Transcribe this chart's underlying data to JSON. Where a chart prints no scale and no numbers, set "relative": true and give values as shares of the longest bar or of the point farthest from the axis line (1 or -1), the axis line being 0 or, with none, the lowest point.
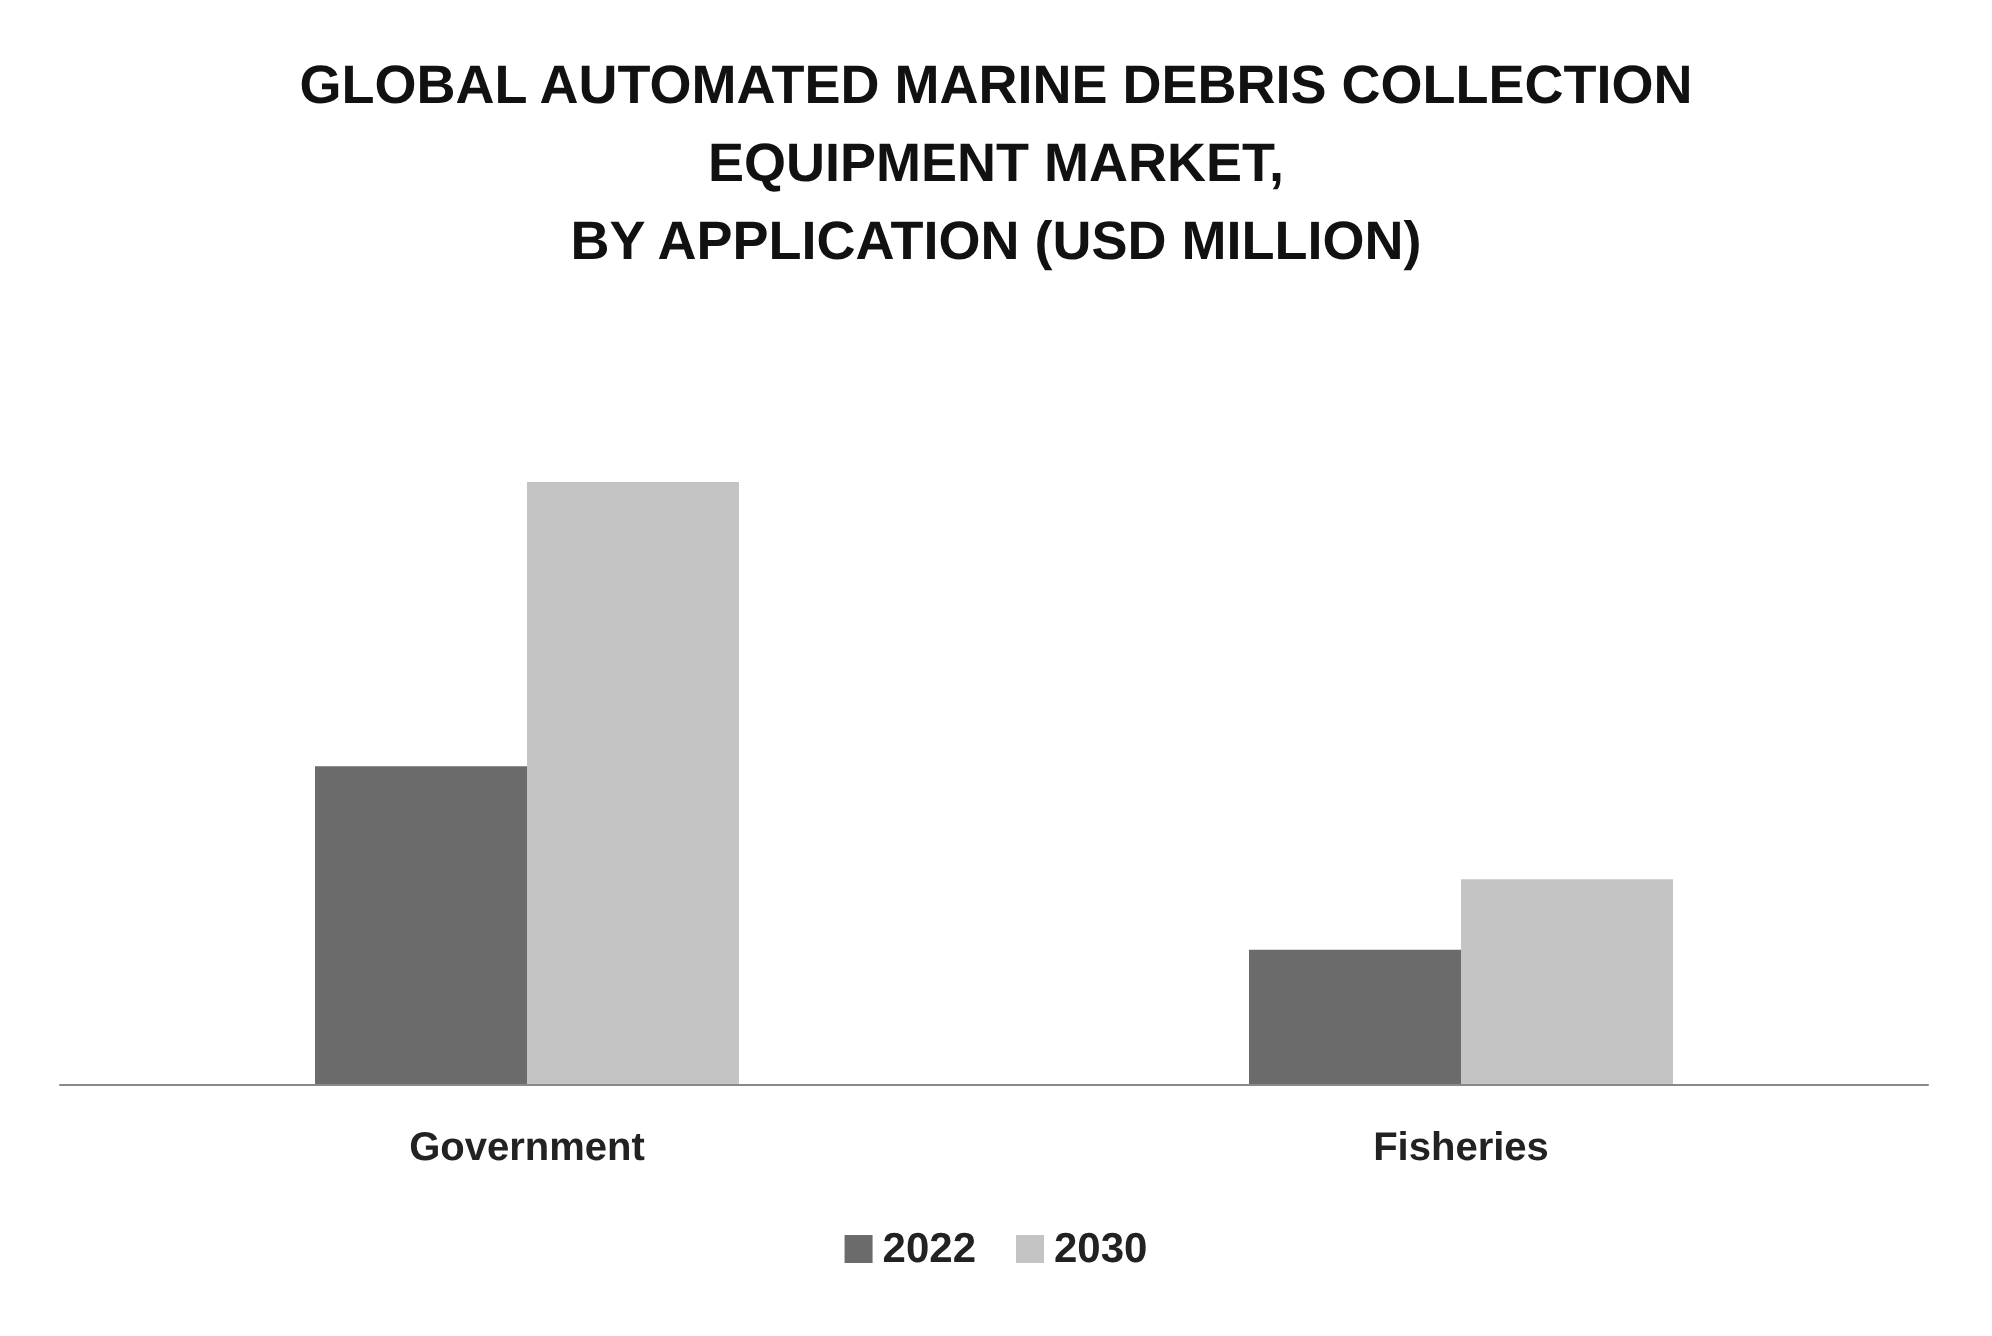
{
  "chart_data": {
    "type": "bar",
    "title": "GLOBAL AUTOMATED MARINE DEBRIS COLLECTION\nEQUIPMENT MARKET,\nBY APPLICATION (USD MILLION)",
    "categories": [
      "Government",
      "Fisheries"
    ],
    "relative": true,
    "legend": "bottom",
    "series": [
      {
        "name": "2022",
        "color": "#6b6b6b",
        "values": [
          0.528,
          0.223
        ]
      },
      {
        "name": "2030",
        "color": "#c4c4c4",
        "values": [
          1,
          0.34
        ]
      }
    ]
  }
}
